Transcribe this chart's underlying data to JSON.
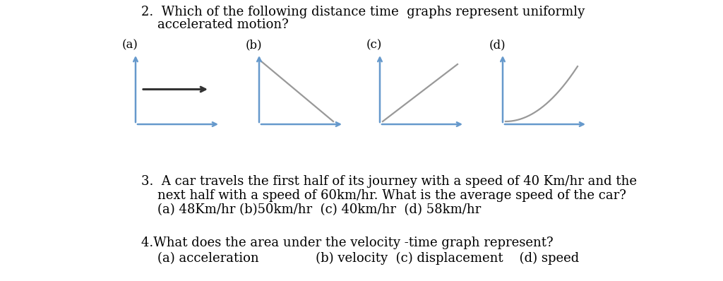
{
  "page_bg": "#ffffff",
  "graph_labels": [
    "(a)",
    "(b)",
    "(c)",
    "(d)"
  ],
  "axis_color": "#6699cc",
  "line_color_a": "#333333",
  "line_color_bcd": "#999999",
  "font_size_text": 13,
  "font_size_label": 12,
  "q2_line1": "2.  Which of the following distance time  graphs represent uniformly",
  "q2_line2": "    accelerated motion?",
  "q3_line1": "3.  A car travels the first half of its journey with a speed of 40 Km/hr and the",
  "q3_line2": "    next half with a speed of 60km/hr. What is the average speed of the car?",
  "q3_line3": "    (a) 48Km/hr (b)50km/hr  (c) 40km/hr  (d) 58km/hr",
  "q4_line1": "4.What does the area under the velocity -time graph represent?",
  "q4_line2": "    (a) acceleration              (b) velocity  (c) displacement    (d) speed"
}
